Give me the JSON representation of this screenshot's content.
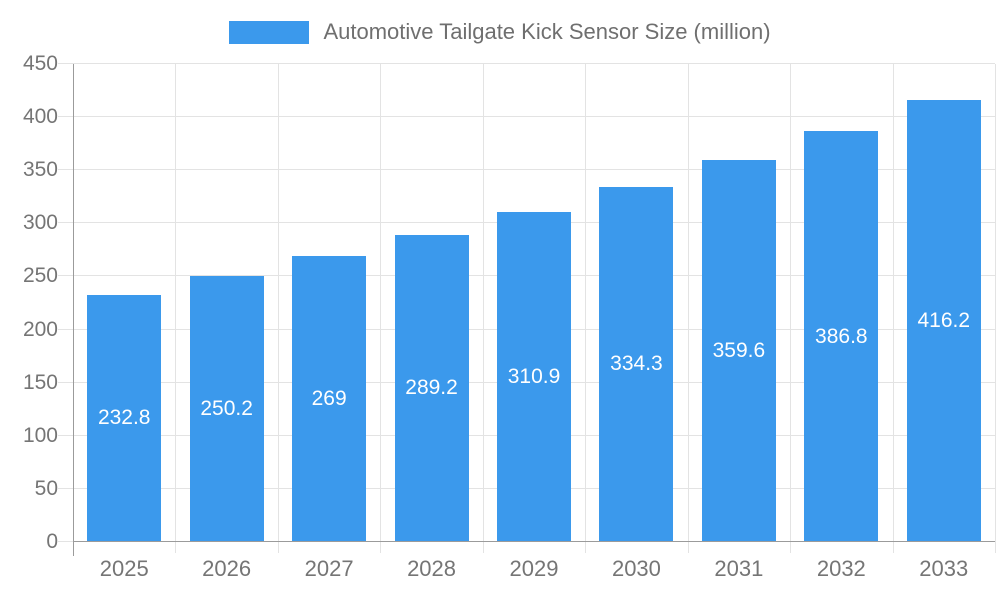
{
  "colors": {
    "bar": "#3b99ec",
    "axis_line": "#9b9b9b",
    "gridline": "#e3e3e3",
    "tick_text": "#757575",
    "legend_text": "#6f6f6f",
    "bar_value_text": "#ffffff",
    "background": "#ffffff"
  },
  "legend": {
    "label": "Automotive Tailgate Kick Sensor Size (million)"
  },
  "chart_data": {
    "type": "bar",
    "title": "Automotive Tailgate Kick Sensor Size (million)",
    "categories": [
      "2025",
      "2026",
      "2027",
      "2028",
      "2029",
      "2030",
      "2031",
      "2032",
      "2033"
    ],
    "values": [
      232.8,
      250.2,
      269,
      289.2,
      310.9,
      334.3,
      359.6,
      386.8,
      416.2
    ],
    "value_labels": [
      "232.8",
      "250.2",
      "269",
      "289.2",
      "310.9",
      "334.3",
      "359.6",
      "386.8",
      "416.2"
    ],
    "xlabel": "",
    "ylabel": "",
    "ylim": [
      0,
      450
    ],
    "yticks": [
      0,
      50,
      100,
      150,
      200,
      250,
      300,
      350,
      400,
      450
    ],
    "grid": true,
    "legend_position": "top",
    "bar_color": "#3b99ec",
    "value_label_position": "inside-center",
    "value_label_color": "#ffffff"
  }
}
